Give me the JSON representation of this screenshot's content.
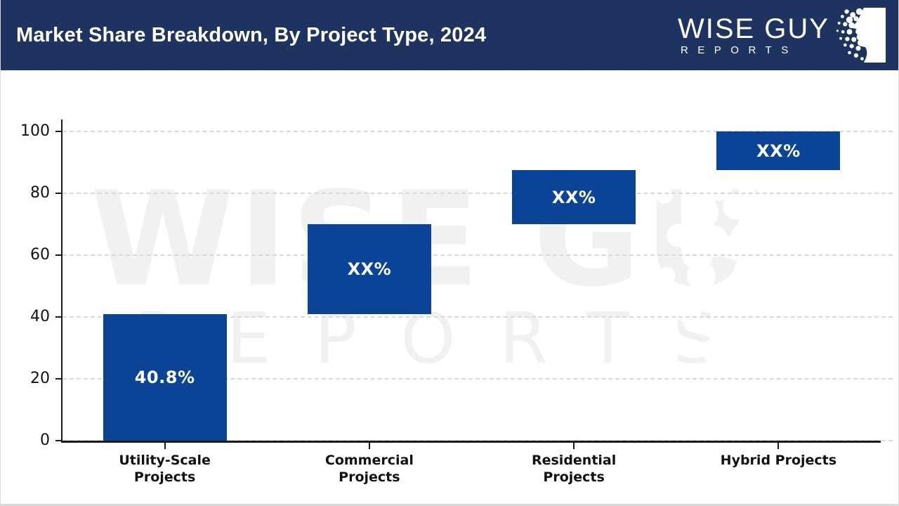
{
  "header": {
    "title": "Market Share Breakdown, By Project Type, 2024",
    "bg_color": "#1f3360",
    "logo": {
      "line1": "WISE GUY",
      "line2": "REPORTS"
    }
  },
  "watermark": {
    "line1": "WISE GUY",
    "line2": "REPORTS"
  },
  "chart_data": {
    "type": "bar",
    "subtype": "floating-segment-waterfall",
    "title": "Market Share Breakdown, By Project Type, 2024",
    "categories": [
      "Utility-Scale Projects",
      "Commercial Projects",
      "Residential Projects",
      "Hybrid Projects"
    ],
    "category_lines": [
      [
        "Utility-Scale",
        "Projects"
      ],
      [
        "Commercial",
        "Projects"
      ],
      [
        "Residential",
        "Projects"
      ],
      [
        "Hybrid Projects"
      ]
    ],
    "segments": [
      {
        "category": "Utility-Scale Projects",
        "start": 0,
        "end": 40.8,
        "label": "40.8%"
      },
      {
        "category": "Commercial Projects",
        "start": 40.8,
        "end": 70,
        "label": "XX%"
      },
      {
        "category": "Residential Projects",
        "start": 70,
        "end": 87.5,
        "label": "XX%"
      },
      {
        "category": "Hybrid Projects",
        "start": 87.5,
        "end": 100,
        "label": "XX%"
      }
    ],
    "yticks": [
      0,
      20,
      40,
      60,
      80,
      100
    ],
    "ylim": [
      0,
      104
    ],
    "xlabel": "",
    "ylabel": "",
    "grid": "horizontal-dashed",
    "legend": "none",
    "bar_color": "#0b4396",
    "bar_label_color": "#ffffff"
  }
}
